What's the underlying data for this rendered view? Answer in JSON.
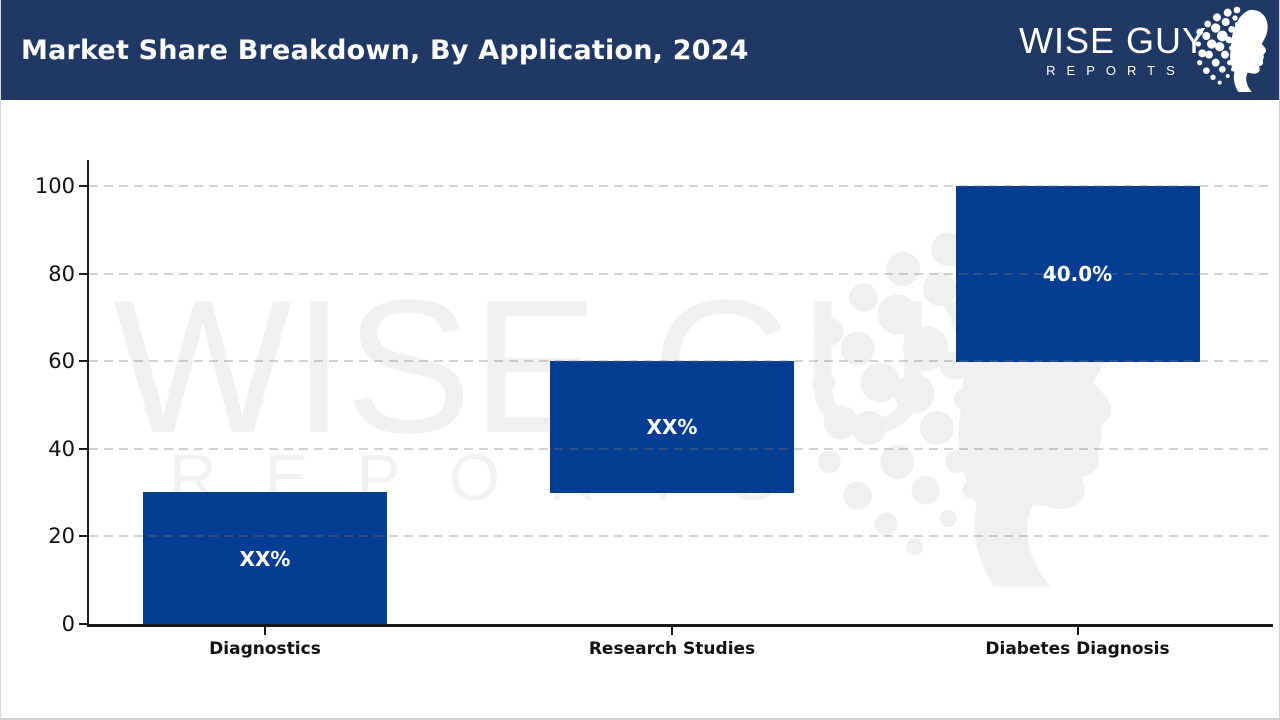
{
  "header": {
    "title": "Market Share Breakdown, By Application, 2024",
    "logo_primary": "WISE GUY",
    "logo_secondary": "REPORTS"
  },
  "watermark": {
    "primary": "WISE GUY",
    "secondary": "REPORTS"
  },
  "chart_data": {
    "type": "bar",
    "subtype": "waterfall",
    "title": "Market Share Breakdown, By Application, 2024",
    "xlabel": "",
    "ylabel": "",
    "categories": [
      "Diagnostics",
      "Research Studies",
      "Diabetes Diagnosis"
    ],
    "segments": [
      {
        "category": "Diagnostics",
        "start": 0,
        "end": 30,
        "label": "XX%"
      },
      {
        "category": "Research Studies",
        "start": 30,
        "end": 60,
        "label": "XX%"
      },
      {
        "category": "Diabetes Diagnosis",
        "start": 60,
        "end": 100,
        "label": "40.0%"
      }
    ],
    "ylim": [
      0,
      100
    ],
    "yticks": [
      0,
      20,
      40,
      60,
      80,
      100
    ],
    "grid": "horizontal-dashed",
    "legend": "none"
  },
  "colors": {
    "header_bg": "#203864",
    "bar": "#053d92",
    "bar_label": "#ffffff",
    "axis": "#1a1a1a",
    "watermark": "#f1f1f4"
  }
}
